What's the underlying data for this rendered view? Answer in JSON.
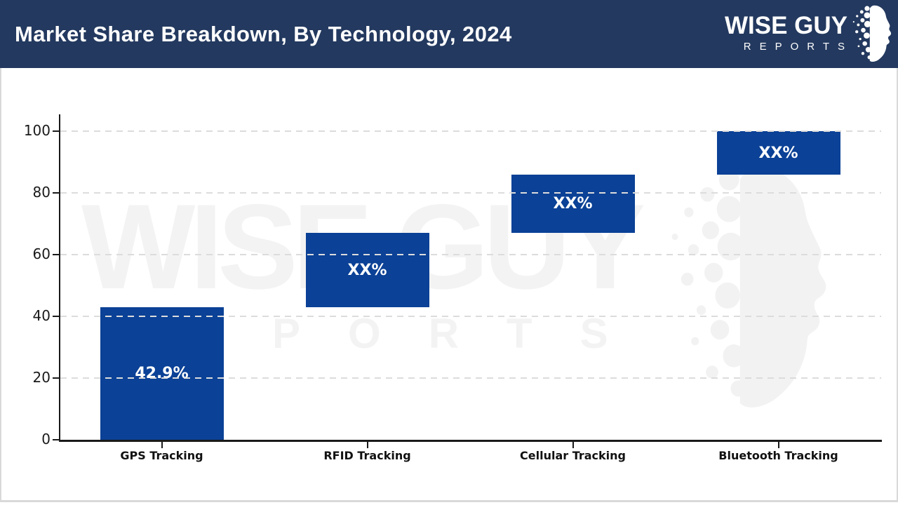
{
  "header": {
    "title": "Market Share Breakdown, By Technology, 2024",
    "brand": {
      "line1": "WISE GUY",
      "line2": "REPORTS"
    },
    "bg_color": "#23395f"
  },
  "watermark": {
    "line1": "WISE GUY",
    "line2": "PORTS"
  },
  "chart_data": {
    "type": "bar",
    "subtype": "waterfall",
    "title": "Market Share Breakdown, By Technology, 2024",
    "categories": [
      "GPS Tracking",
      "RFID Tracking",
      "Cellular Tracking",
      "Bluetooth Tracking"
    ],
    "segments": [
      {
        "category": "GPS Tracking",
        "start": 0,
        "end": 42.9,
        "label": "42.9%"
      },
      {
        "category": "RFID Tracking",
        "start": 42.9,
        "end": 67.0,
        "label": "XX%"
      },
      {
        "category": "Cellular Tracking",
        "start": 67.0,
        "end": 85.9,
        "label": "XX%"
      },
      {
        "category": "Bluetooth Tracking",
        "start": 85.9,
        "end": 100.0,
        "label": "XX%"
      }
    ],
    "xlabel": "",
    "ylabel": "",
    "y_axis": {
      "min": 0,
      "max": 100,
      "ticks": [
        0,
        20,
        40,
        60,
        80,
        100
      ]
    },
    "grid": "horizontal-dashed",
    "legend": "none",
    "bar_color": "#0b4196",
    "bar_label_color": "#ffffff",
    "axis_color": "#1a1a1a",
    "gridline_color": "#dcdcdc"
  }
}
